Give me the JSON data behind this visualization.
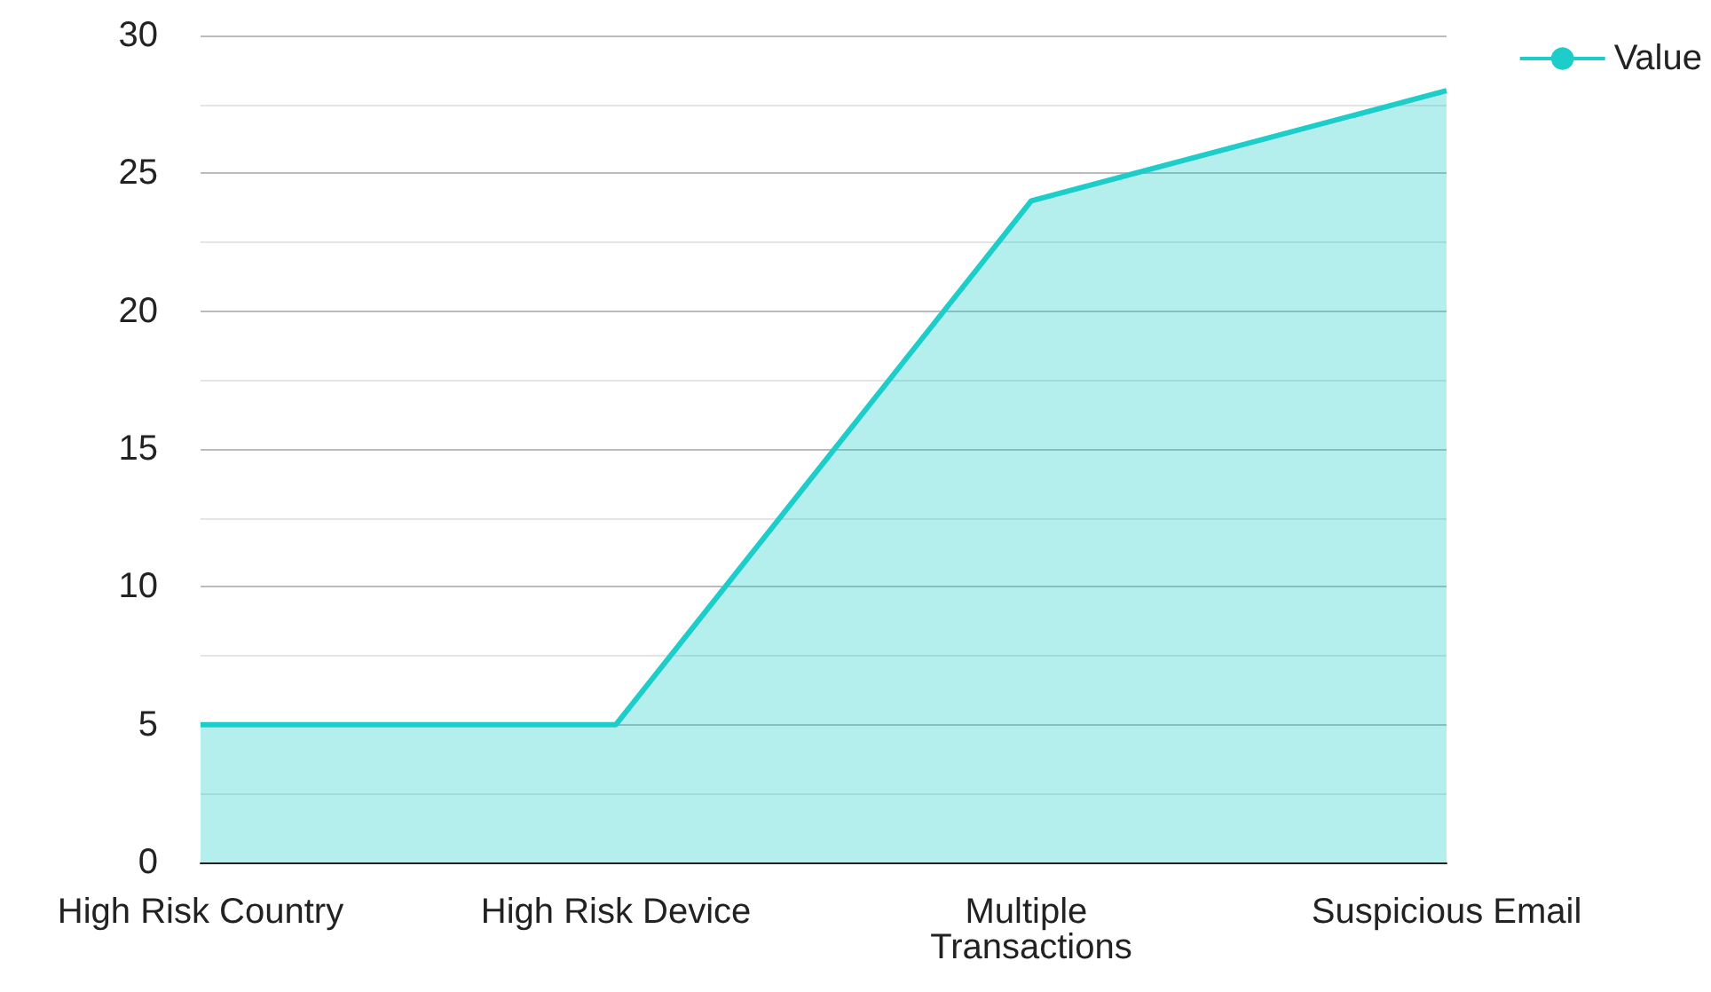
{
  "chart_data": {
    "type": "area",
    "categories": [
      "High Risk Country",
      "High Risk Device",
      "Multiple Transactions",
      "Suspicious Email"
    ],
    "series": [
      {
        "name": "Value",
        "color": "#1ccdc9",
        "values": [
          5,
          5,
          24,
          28
        ]
      }
    ],
    "ylim": [
      0,
      30
    ],
    "yticks": [
      0,
      5,
      10,
      15,
      20,
      25,
      30
    ],
    "grid": "y",
    "legend": "top right",
    "marker": "none"
  }
}
